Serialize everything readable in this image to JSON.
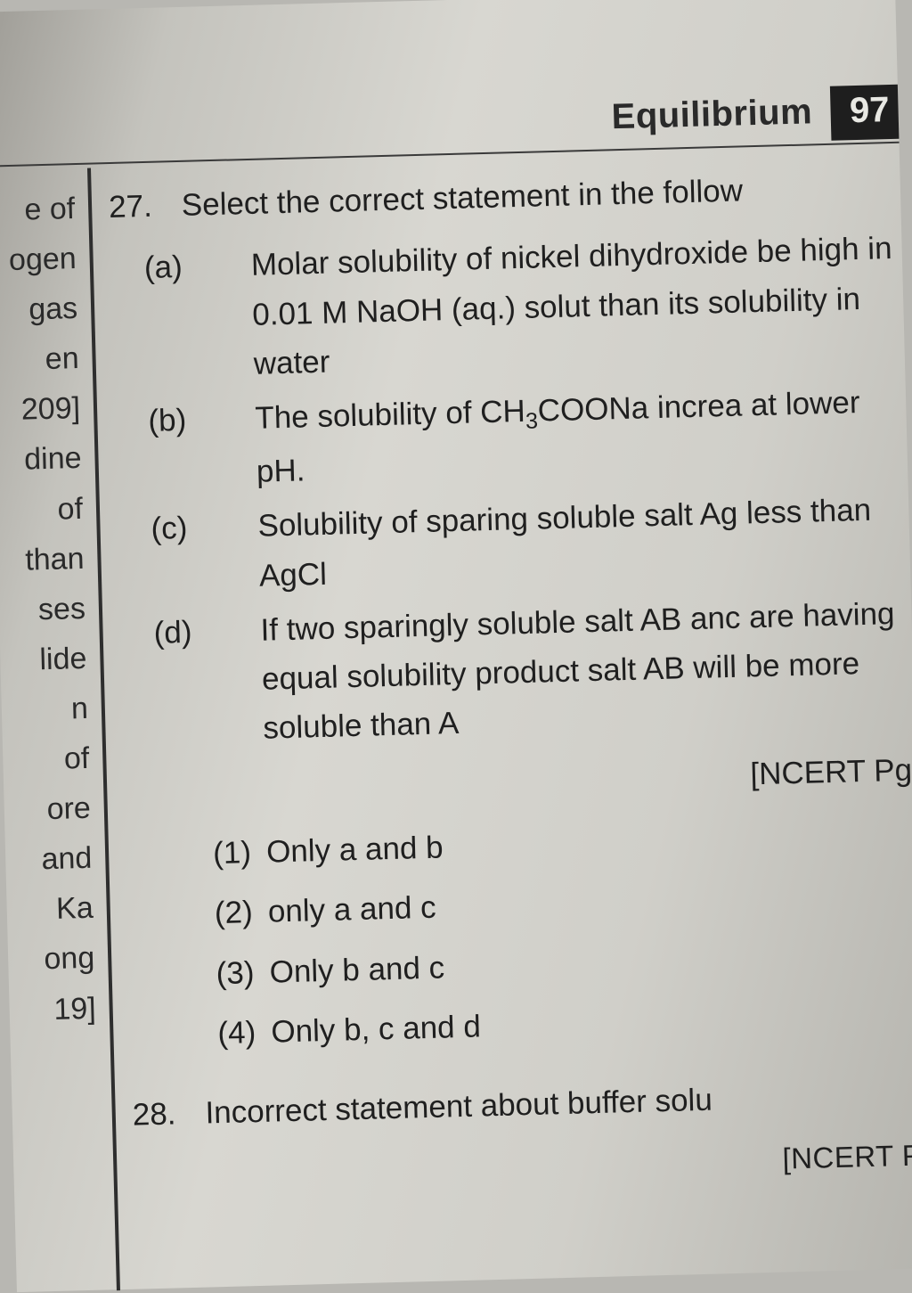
{
  "header": {
    "chapter_title": "Equilibrium",
    "page_number": "97"
  },
  "left_margin_fragments": [
    "e of",
    "ogen",
    "gas",
    "en",
    "209]",
    "dine",
    "",
    "of",
    "than",
    "",
    "ses",
    "lide",
    "n",
    "of",
    "ore",
    "",
    "",
    "and",
    "Ka",
    "ong",
    "19]"
  ],
  "q27": {
    "number": "27.",
    "stem": "Select the correct statement in the follow",
    "options": {
      "a": "Molar solubility of nickel dihydroxide be high in 0.01 M NaOH (aq.) solut than its solubility in water",
      "b_pre": "The solubility of CH",
      "b_sub": "3",
      "b_post": "COONa increa at lower pH.",
      "c": "Solubility of sparing soluble salt Ag less than AgCl",
      "d": "If two sparingly soluble salt AB anc are having equal solubility product salt AB will be more soluble than A"
    },
    "reference": "[NCERT Pg",
    "answers": {
      "1": "Only a and b",
      "2": "only a and c",
      "3": "Only b and c",
      "4": "Only b, c and d"
    }
  },
  "q28": {
    "number": "28.",
    "stem": "Incorrect statement about buffer solu",
    "reference": "[NCERT P"
  },
  "labels": {
    "a": "(a)",
    "b": "(b)",
    "c": "(c)",
    "d": "(d)",
    "1": "(1)",
    "2": "(2)",
    "3": "(3)",
    "4": "(4)"
  }
}
